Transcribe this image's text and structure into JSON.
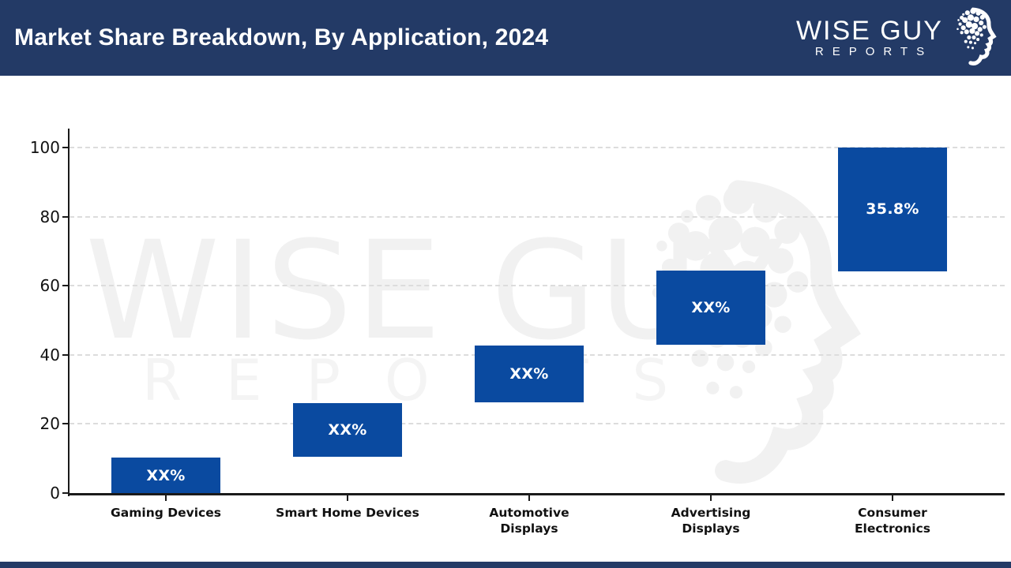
{
  "header": {
    "title": "Market Share Breakdown, By Application, 2024",
    "logo_line1": "WISE GUY",
    "logo_line2": "REPORTS"
  },
  "watermark": {
    "line1": "WISE GUY",
    "line2": "REPORTS"
  },
  "footer": {},
  "chart_data": {
    "type": "bar",
    "variant": "waterfall",
    "title": "Market Share Breakdown, By Application, 2024",
    "categories": [
      [
        "Gaming Devices"
      ],
      [
        "Smart Home Devices"
      ],
      [
        "Automotive",
        "Displays"
      ],
      [
        "Advertising",
        "Displays"
      ],
      [
        "Consumer",
        "Electronics"
      ]
    ],
    "segments": [
      {
        "start": 0,
        "end": 10.2,
        "label": "XX%"
      },
      {
        "start": 10.4,
        "end": 26.0,
        "label": "XX%"
      },
      {
        "start": 26.3,
        "end": 42.8,
        "label": "XX%"
      },
      {
        "start": 42.9,
        "end": 64.3,
        "label": "XX%"
      },
      {
        "start": 64.2,
        "end": 100,
        "label": "35.8%"
      }
    ],
    "yticks": [
      0,
      20,
      40,
      60,
      80,
      100
    ],
    "ylim": [
      0,
      105
    ],
    "bar_color": "#0A4AA0",
    "grid": {
      "axis": "y",
      "style": "dashed",
      "color": "#dcdcdc"
    },
    "legend_position": "none"
  },
  "colors": {
    "header_bg": "#233A66",
    "footer_bg": "#233A66",
    "bar": "#0A4AA0",
    "axis": "#1a1a1a",
    "watermark": "#f1f1f1"
  }
}
